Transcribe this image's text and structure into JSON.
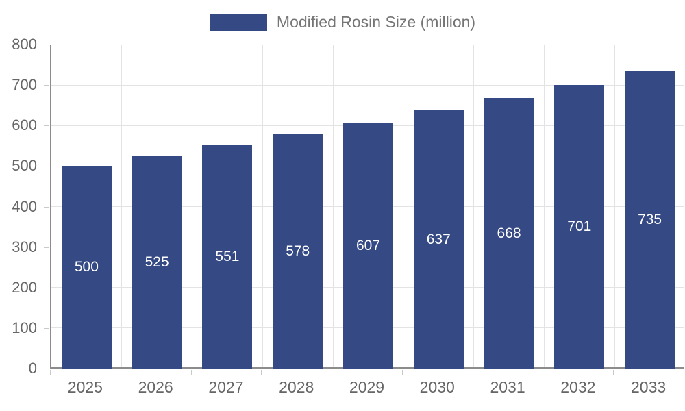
{
  "legend": {
    "label": "Modified Rosin Size (million)",
    "swatch_color": "#354a84"
  },
  "chart_data": {
    "type": "bar",
    "title": "",
    "xlabel": "",
    "ylabel": "",
    "categories": [
      "2025",
      "2026",
      "2027",
      "2028",
      "2029",
      "2030",
      "2031",
      "2032",
      "2033"
    ],
    "values": [
      500,
      525,
      551,
      578,
      607,
      637,
      668,
      701,
      735
    ],
    "series_name": "Modified Rosin Size (million)",
    "ylim": [
      0,
      800
    ],
    "yticks": [
      0,
      100,
      200,
      300,
      400,
      500,
      600,
      700,
      800
    ],
    "grid": true,
    "legend_position": "top-center",
    "bar_color": "#354a84",
    "bar_label_color": "#ffffff",
    "axis_color": "#8c8c8c",
    "gridline_color": "#e3e3e3",
    "tick_label_color": "#666666"
  }
}
